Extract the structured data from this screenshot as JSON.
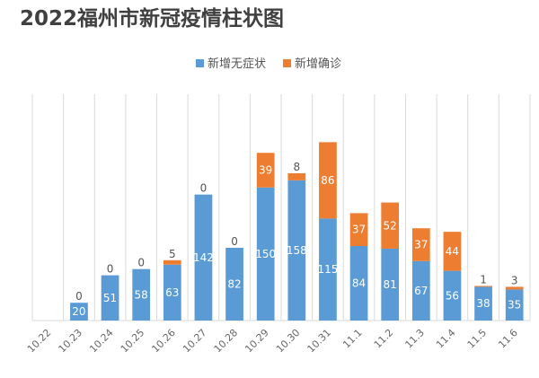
{
  "chart_data": {
    "type": "bar",
    "stacked": true,
    "title": "2022福州市新冠疫情柱状图",
    "categories": [
      "10.22",
      "10.23",
      "10.24",
      "10.25",
      "10.26",
      "10.27",
      "10.28",
      "10.29",
      "10.30",
      "10.31",
      "11.1",
      "11.2",
      "11.3",
      "11.4",
      "11.5",
      "11.6"
    ],
    "series": [
      {
        "name": "新增无症状",
        "color": "#5b9bd5",
        "values": [
          0,
          20,
          51,
          58,
          63,
          142,
          82,
          150,
          158,
          115,
          84,
          81,
          67,
          56,
          38,
          35
        ]
      },
      {
        "name": "新增确诊",
        "color": "#ed7d31",
        "values": [
          0,
          0,
          0,
          0,
          5,
          0,
          0,
          39,
          8,
          86,
          37,
          52,
          37,
          44,
          1,
          3
        ]
      }
    ],
    "legend": "top",
    "grid": "vertical category separators",
    "ylim": [
      0,
      255
    ]
  }
}
